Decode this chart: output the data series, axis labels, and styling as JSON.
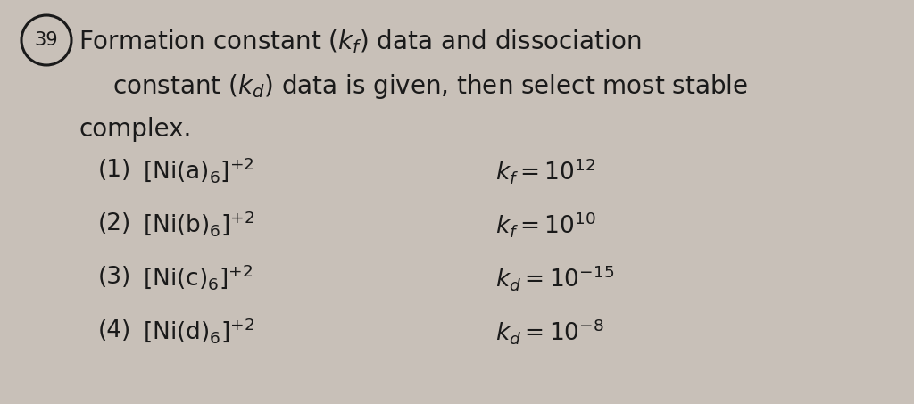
{
  "background_color": "#c8c0b8",
  "text_color": "#1a1a1a",
  "question_number": "39",
  "options": [
    {
      "num": "(1)",
      "letter": "a",
      "const_type": "f",
      "exp": "12"
    },
    {
      "num": "(2)",
      "letter": "b",
      "const_type": "f",
      "exp": "10"
    },
    {
      "num": "(3)",
      "letter": "c",
      "const_type": "d",
      "exp": "-15"
    },
    {
      "num": "(4)",
      "letter": "d",
      "const_type": "d",
      "exp": "-8"
    }
  ]
}
